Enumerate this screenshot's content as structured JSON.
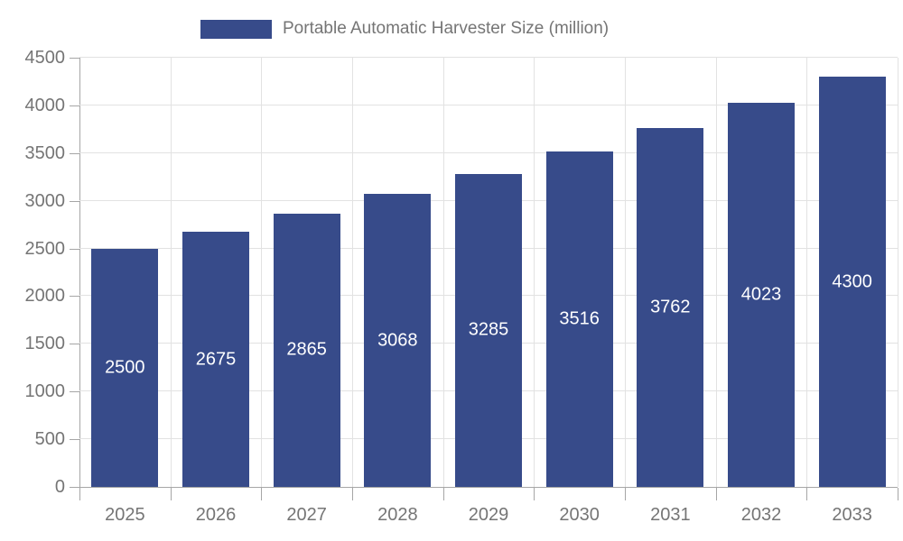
{
  "chart_data": {
    "type": "bar",
    "title": "Portable Automatic Harvester Size (million)",
    "categories": [
      "2025",
      "2026",
      "2027",
      "2028",
      "2029",
      "2030",
      "2031",
      "2032",
      "2033"
    ],
    "values": [
      2500,
      2675,
      2865,
      3068,
      3285,
      3516,
      3762,
      4023,
      4300
    ],
    "xlabel": "",
    "ylabel": "",
    "ylim": [
      0,
      4500
    ],
    "y_ticks": [
      0,
      500,
      1000,
      1500,
      2000,
      2500,
      3000,
      3500,
      4000,
      4500
    ],
    "grid": true,
    "bar_labels_shown": true,
    "legend_position": "top-center"
  },
  "legend": {
    "label": "Portable Automatic Harvester Size (million)"
  },
  "colors": {
    "bar": "#374B8A",
    "grid": "#e2e2e2",
    "axis": "#a6a6a6",
    "tick_text": "#757575",
    "value_label": "#ffffff",
    "background": "#ffffff"
  }
}
